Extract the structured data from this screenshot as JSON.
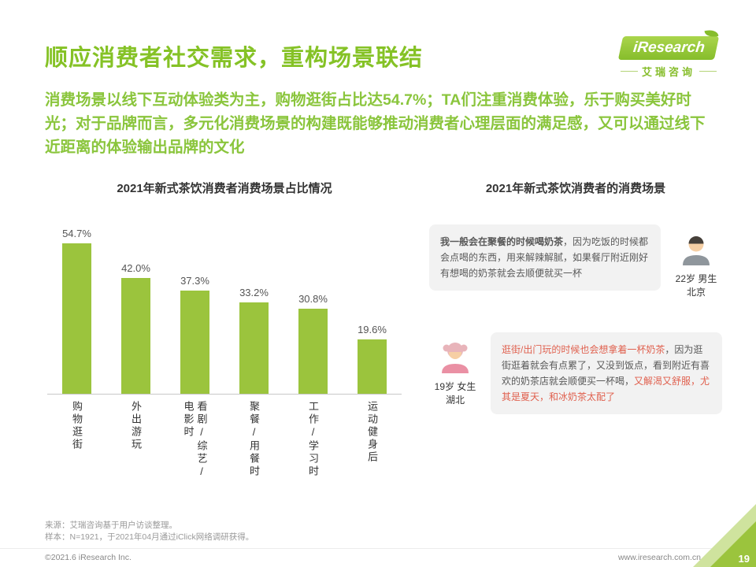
{
  "header": {
    "title": "顺应消费者社交需求，重构场景联结",
    "intro": "消费场景以线下互动体验类为主，购物逛街占比达54.7%；TA们注重消费体验，乐于购买美好时光；对于品牌而言，多元化消费场景的构建既能够推动消费者心理层面的满足感，又可以通过线下近距离的体验输出品牌的文化"
  },
  "logo": {
    "brand": "iResearch",
    "brand_cn": "艾瑞咨询"
  },
  "chart_data": {
    "type": "bar",
    "title": "2021年新式茶饮消费者消费场景占比情况",
    "categories": [
      "购物逛街",
      "外出游玩",
      "看剧/综艺/电影时",
      "聚餐/用餐时",
      "工作/学习时",
      "运动健身后"
    ],
    "values": [
      54.7,
      42.0,
      37.3,
      33.2,
      30.8,
      19.6
    ],
    "value_labels": [
      "54.7%",
      "42.0%",
      "37.3%",
      "33.2%",
      "30.8%",
      "19.6%"
    ],
    "ylim": [
      0,
      60
    ],
    "grid": false,
    "legend": "none",
    "bar_color": "#9bc43d"
  },
  "right_panel": {
    "title": "2021年新式茶饮消费者的消费场景",
    "quotes": [
      {
        "segments": [
          {
            "text": "我一般会在聚餐的时候喝奶茶",
            "style": "bold"
          },
          {
            "text": "，因为吃饭的时候都会点喝的东西，用来解辣解腻，如果餐厅附近刚好有想喝的奶茶就会去顺便就买一杯",
            "style": "normal"
          }
        ],
        "person_line1": "22岁 男生",
        "person_line2": "北京"
      },
      {
        "segments": [
          {
            "text": "逛街/出门玩的时候也会想拿着一杯奶茶",
            "style": "red"
          },
          {
            "text": "，因为逛街逛着就会有点累了，又没到饭点，看到附近有喜欢的奶茶店就会顺便买一杯喝，",
            "style": "normal"
          },
          {
            "text": "又解渴又舒服，尤其是夏天，和冰奶茶太配了",
            "style": "red"
          }
        ],
        "person_line1": "19岁 女生",
        "person_line2": "湖北"
      }
    ]
  },
  "footnote": {
    "source": "来源：艾瑞咨询基于用户访谈整理。",
    "sample": "样本：N=1921，于2021年04月通过iClick网络调研获得。"
  },
  "footer": {
    "copyright": "©2021.6 iResearch Inc.",
    "website": "www.iresearch.com.cn",
    "page_number": "19"
  },
  "colors": {
    "brand_green": "#9bc43d",
    "title_green": "#85c226",
    "quote_red": "#e0614f"
  }
}
